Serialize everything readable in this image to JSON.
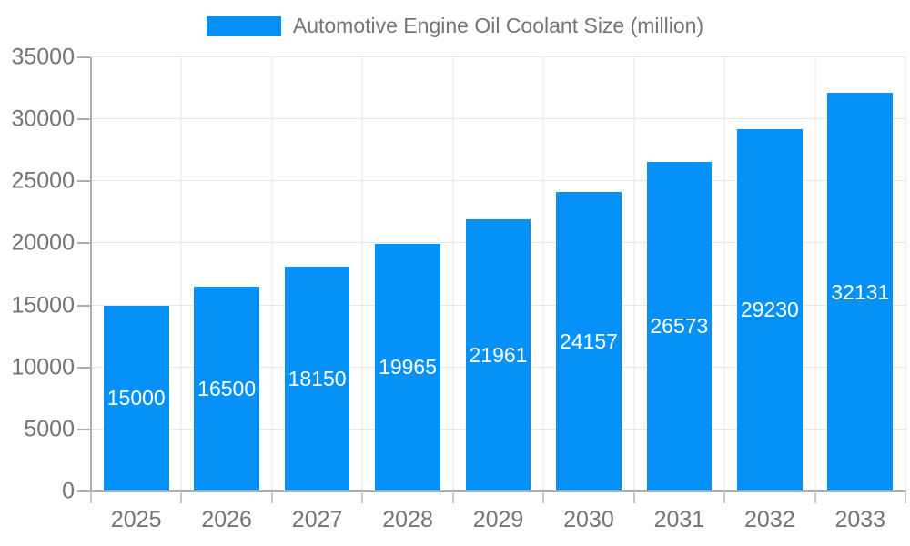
{
  "chart_data": {
    "type": "bar",
    "title": "Automotive Engine Oil Coolant Size (million)",
    "legend": {
      "label": "Automotive Engine Oil Coolant Size (million)",
      "position": "top"
    },
    "categories": [
      "2025",
      "2026",
      "2027",
      "2028",
      "2029",
      "2030",
      "2031",
      "2032",
      "2033"
    ],
    "series": [
      {
        "name": "Automotive Engine Oil Coolant Size (million)",
        "values": [
          15000,
          16500,
          18150,
          19965,
          21961,
          24157,
          26573,
          29230,
          32131
        ]
      }
    ],
    "data_labels_shown": [
      "15000",
      "16500",
      "18150",
      "19965",
      "21961",
      "24157",
      "26573",
      "29230",
      "32131"
    ],
    "xlabel": "",
    "ylabel": "",
    "ylim": [
      0,
      35000
    ],
    "yticks": [
      0,
      5000,
      10000,
      15000,
      20000,
      25000,
      30000,
      35000
    ],
    "grid": "horizontal-and-vertical",
    "colors": {
      "bar": "#0591f8",
      "bar_label": "#ffffff",
      "axis_text": "#757575",
      "gridline": "#e6e6e6",
      "axis_line": "#adadad",
      "tick": "#c9c9c9",
      "background": "#ffffff"
    }
  }
}
